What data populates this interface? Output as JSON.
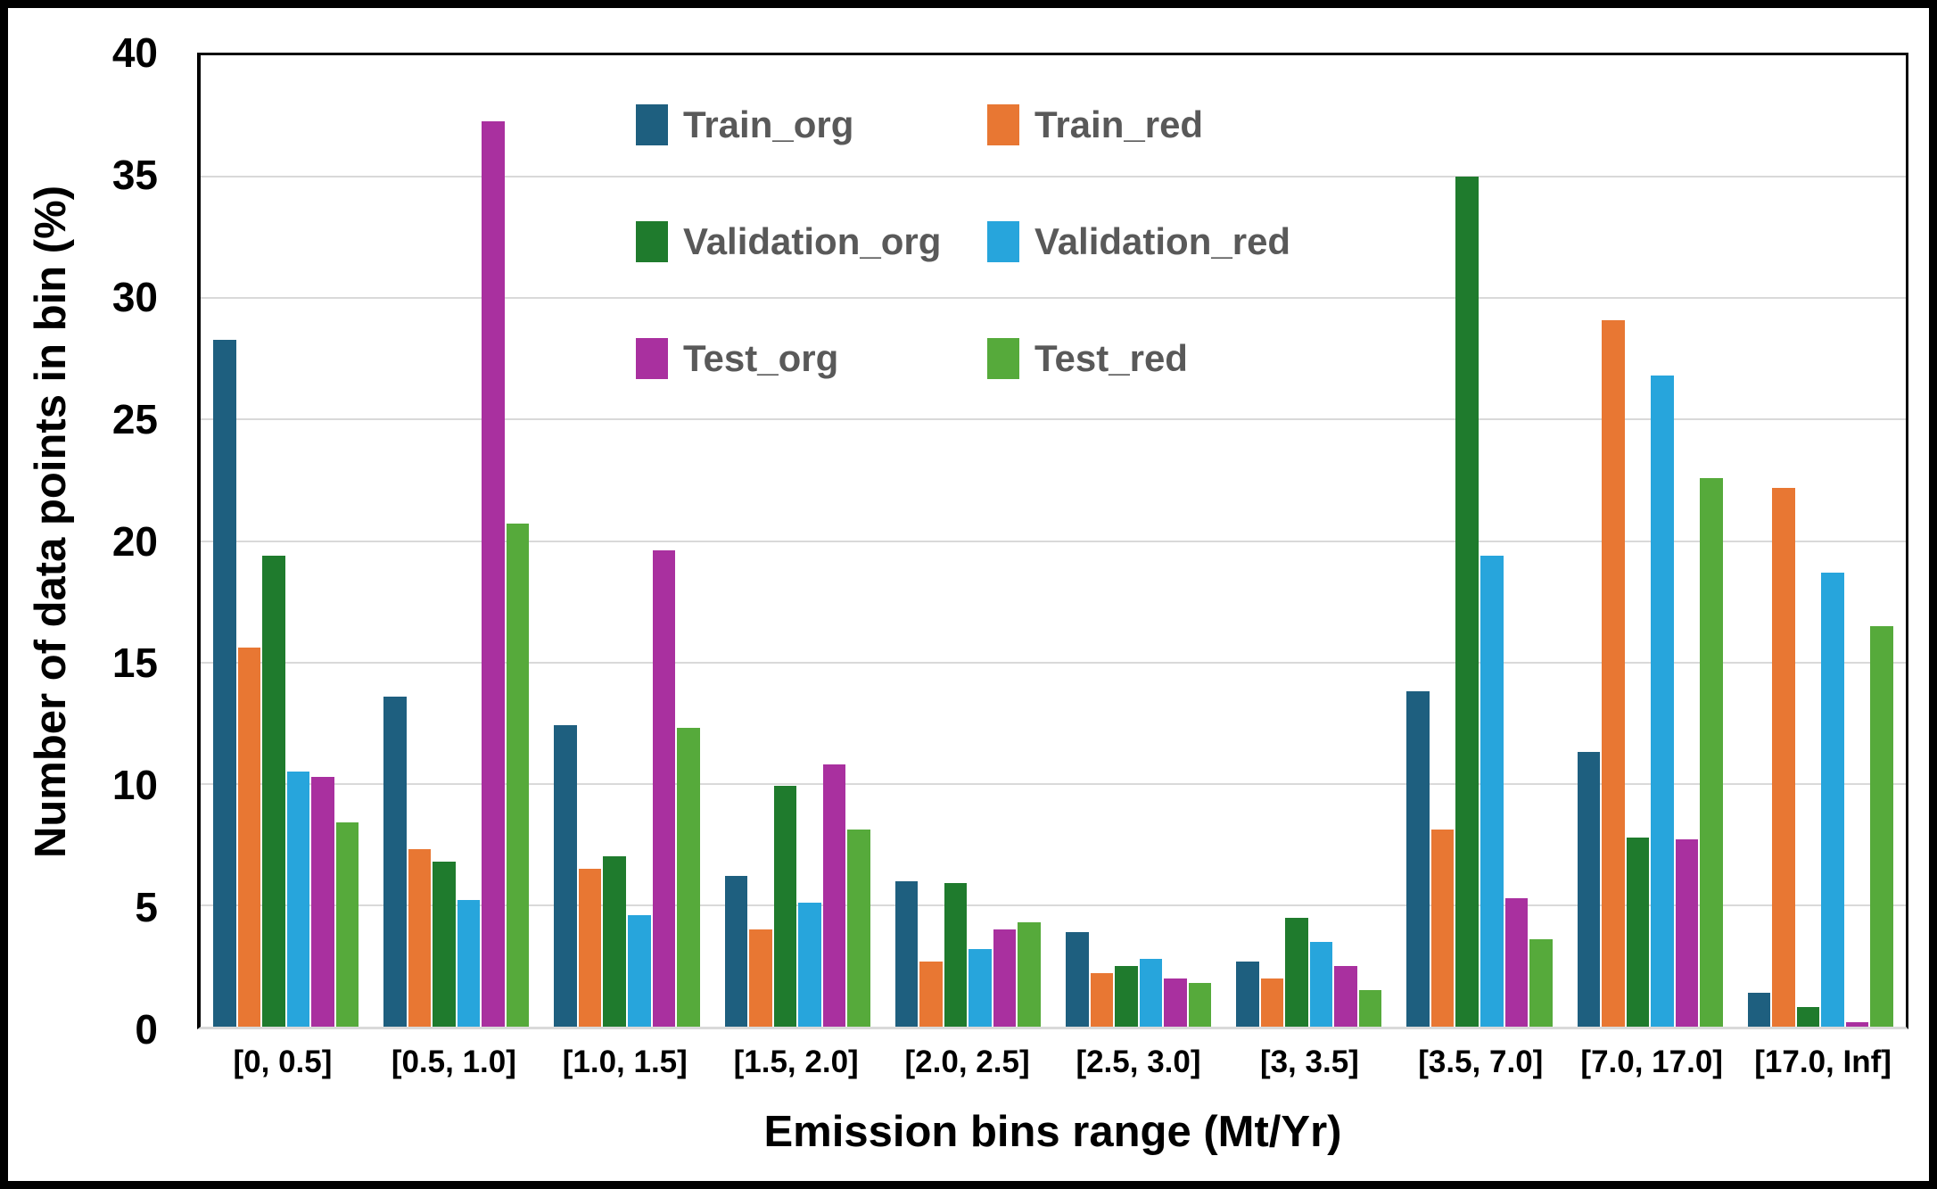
{
  "chart_data": {
    "type": "bar",
    "title": "",
    "xlabel": "Emission bins range (Mt/Yr)",
    "ylabel": "Number of data points in bin (%)",
    "ylim": [
      0,
      40
    ],
    "y_ticks": [
      0,
      5,
      10,
      15,
      20,
      25,
      30,
      35,
      40
    ],
    "grid": "horizontal",
    "legend_position": "inside-top-center",
    "categories": [
      "[0, 0.5]",
      "[0.5, 1.0]",
      "[1.0, 1.5]",
      "[1.5, 2.0]",
      "[2.0, 2.5]",
      "[2.5, 3.0]",
      "[3, 3.5]",
      "[3.5, 7.0]",
      "[7.0, 17.0]",
      "[17.0, Inf]"
    ],
    "series": [
      {
        "name": "Train_org",
        "color": "#1E5F7F",
        "values": [
          28.3,
          13.6,
          12.4,
          6.2,
          6.0,
          3.9,
          2.7,
          13.8,
          11.3,
          1.4
        ]
      },
      {
        "name": "Train_red",
        "color": "#E87733",
        "values": [
          15.6,
          7.3,
          6.5,
          4.0,
          2.7,
          2.2,
          2.0,
          8.1,
          29.1,
          22.2
        ]
      },
      {
        "name": "Validation_org",
        "color": "#1F7B2D",
        "values": [
          19.4,
          6.8,
          7.0,
          9.9,
          5.9,
          2.5,
          4.5,
          35.0,
          7.8,
          0.8
        ]
      },
      {
        "name": "Validation_red",
        "color": "#27A5DC",
        "values": [
          10.5,
          5.2,
          4.6,
          5.1,
          3.2,
          2.8,
          3.5,
          19.4,
          26.8,
          18.7
        ]
      },
      {
        "name": "Test_org",
        "color": "#A9309F",
        "values": [
          10.3,
          37.3,
          19.6,
          10.8,
          4.0,
          2.0,
          2.5,
          5.3,
          7.7,
          0.2
        ]
      },
      {
        "name": "Test_red",
        "color": "#56AA3B",
        "values": [
          8.4,
          20.7,
          12.3,
          8.1,
          4.3,
          1.8,
          1.5,
          3.6,
          22.6,
          16.5
        ]
      }
    ]
  },
  "colors": {
    "gridline": "#D9D9D9",
    "axis_line": "#000000",
    "plot_border": "#0D0D0D",
    "outer_frame": "#000000",
    "legend_text": "#595959",
    "background": "#FFFFFF"
  }
}
